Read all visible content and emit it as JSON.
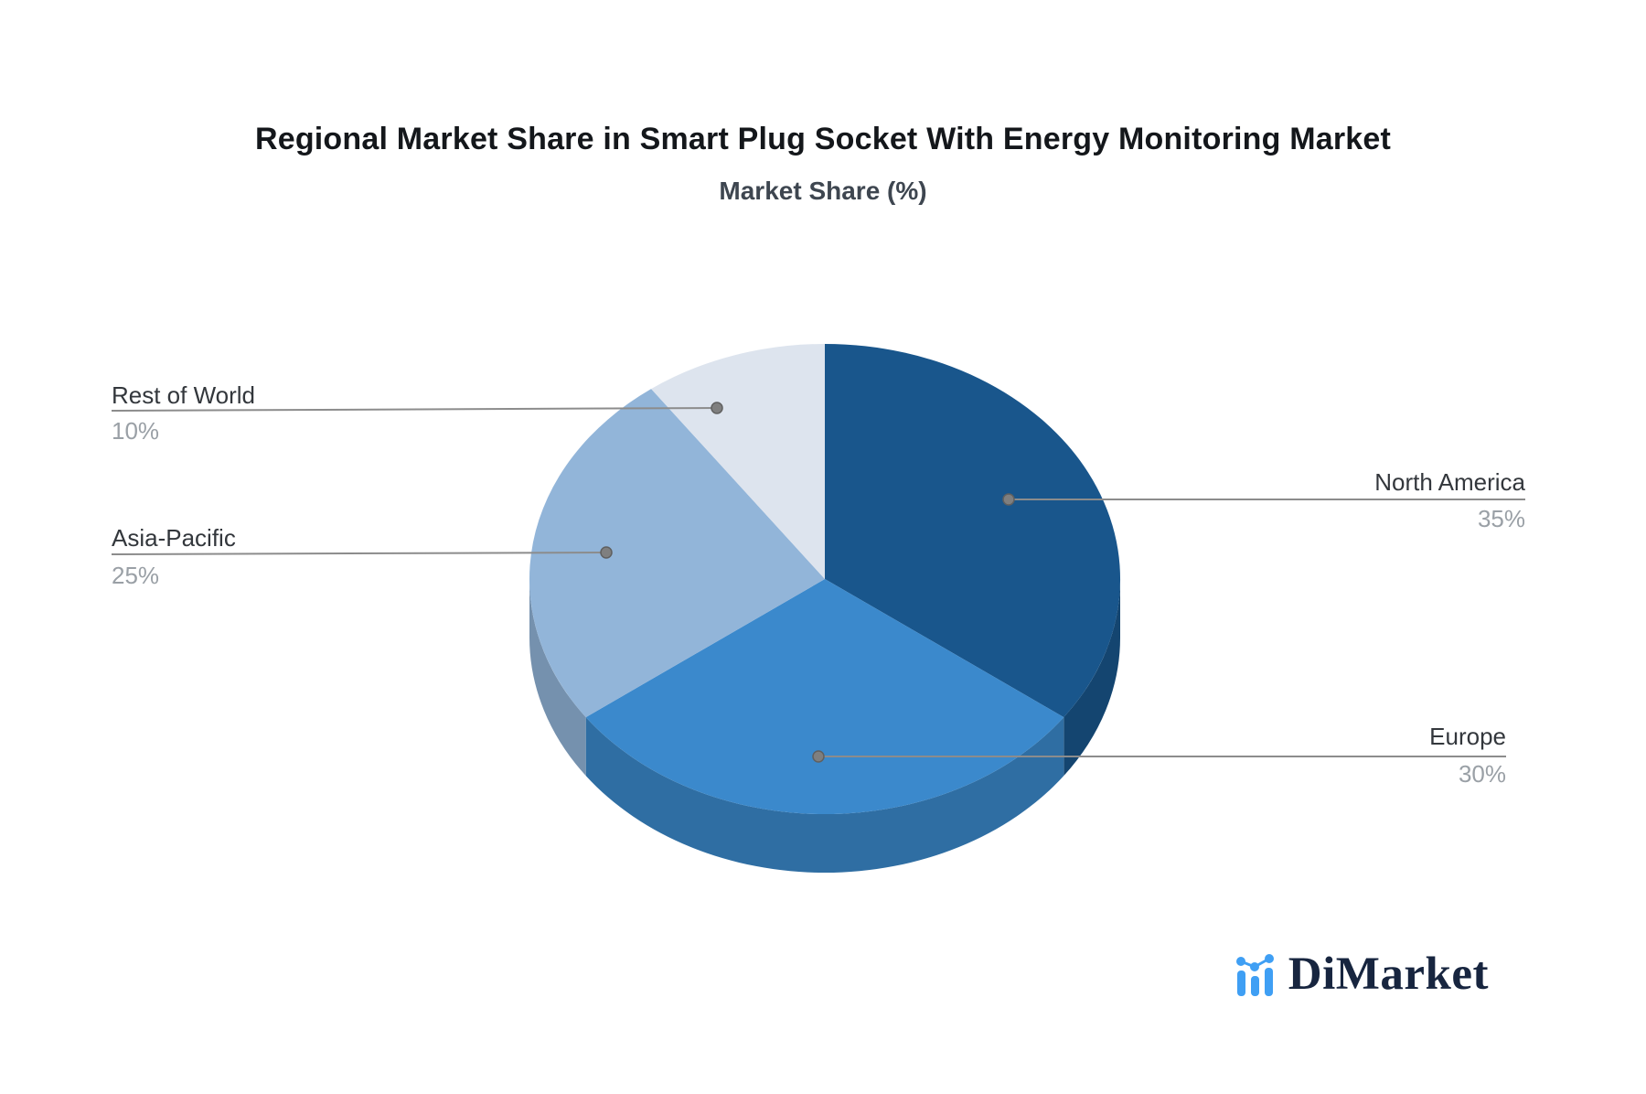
{
  "title": "Regional Market Share in Smart Plug Socket With Energy Monitoring Market",
  "subtitle": "Market Share (%)",
  "brand": {
    "name": "DiMarket",
    "icon": "bar-chart-logo-icon",
    "text_color": "#17253f",
    "accent_color": "#3f9ff4"
  },
  "chart_data": {
    "type": "pie",
    "style": "3d",
    "title": "Regional Market Share in Smart Plug Socket With Energy Monitoring Market",
    "subtitle": "Market Share (%)",
    "unit": "%",
    "start_angle_deg": 0,
    "direction": "clockwise",
    "legend_position": "callout-labels",
    "grid": false,
    "slices": [
      {
        "label": "North America",
        "value": 35,
        "display": "35%",
        "color": "#19568c"
      },
      {
        "label": "Europe",
        "value": 30,
        "display": "30%",
        "color": "#3b89cc"
      },
      {
        "label": "Asia-Pacific",
        "value": 25,
        "display": "25%",
        "color": "#92b5d9"
      },
      {
        "label": "Rest of World",
        "value": 10,
        "display": "10%",
        "color": "#dde4ee"
      }
    ],
    "leader_line_color": "#8c8c8c",
    "label_color": "#33373c",
    "value_color": "#9aa0a6"
  }
}
